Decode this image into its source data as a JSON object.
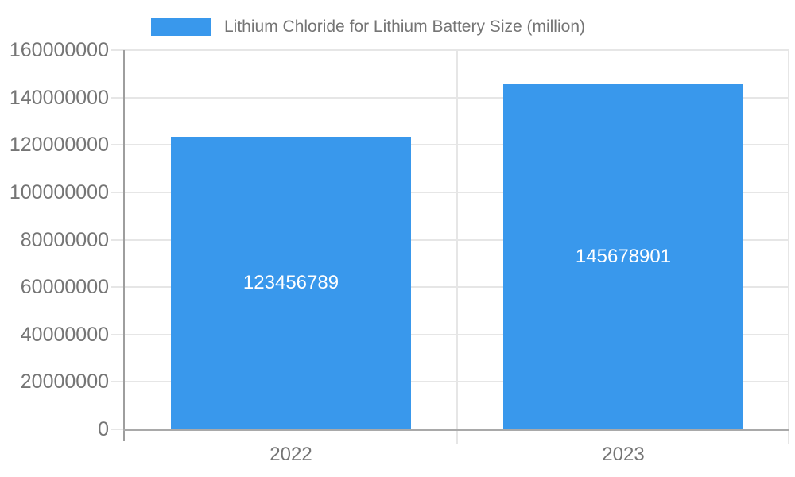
{
  "legend": {
    "label": "Lithium Chloride for Lithium Battery Size (million)"
  },
  "chart_data": {
    "type": "bar",
    "title": "Lithium Chloride for Lithium Battery Size (million)",
    "categories": [
      "2022",
      "2023"
    ],
    "values": [
      123456789,
      145678901
    ],
    "value_labels": [
      "123456789",
      "145678901"
    ],
    "xlabel": "",
    "ylabel": "",
    "ylim": [
      0,
      160000000
    ],
    "yticks": [
      0,
      20000000,
      40000000,
      60000000,
      80000000,
      100000000,
      120000000,
      140000000,
      160000000
    ],
    "ytick_labels": [
      "0",
      "20000000",
      "40000000",
      "60000000",
      "80000000",
      "100000000",
      "120000000",
      "140000000",
      "160000000"
    ],
    "grid": true,
    "legend_position": "top",
    "value_labels_inside_bars": true
  },
  "colors": {
    "bar": "#3998ec",
    "grid": "#e6e6e6",
    "axis": "#9e9e9e",
    "baseline": "#a9a9a9",
    "tick_text": "#757575",
    "title_text": "#757575",
    "value_label": "#ffffff",
    "background": "#ffffff"
  }
}
